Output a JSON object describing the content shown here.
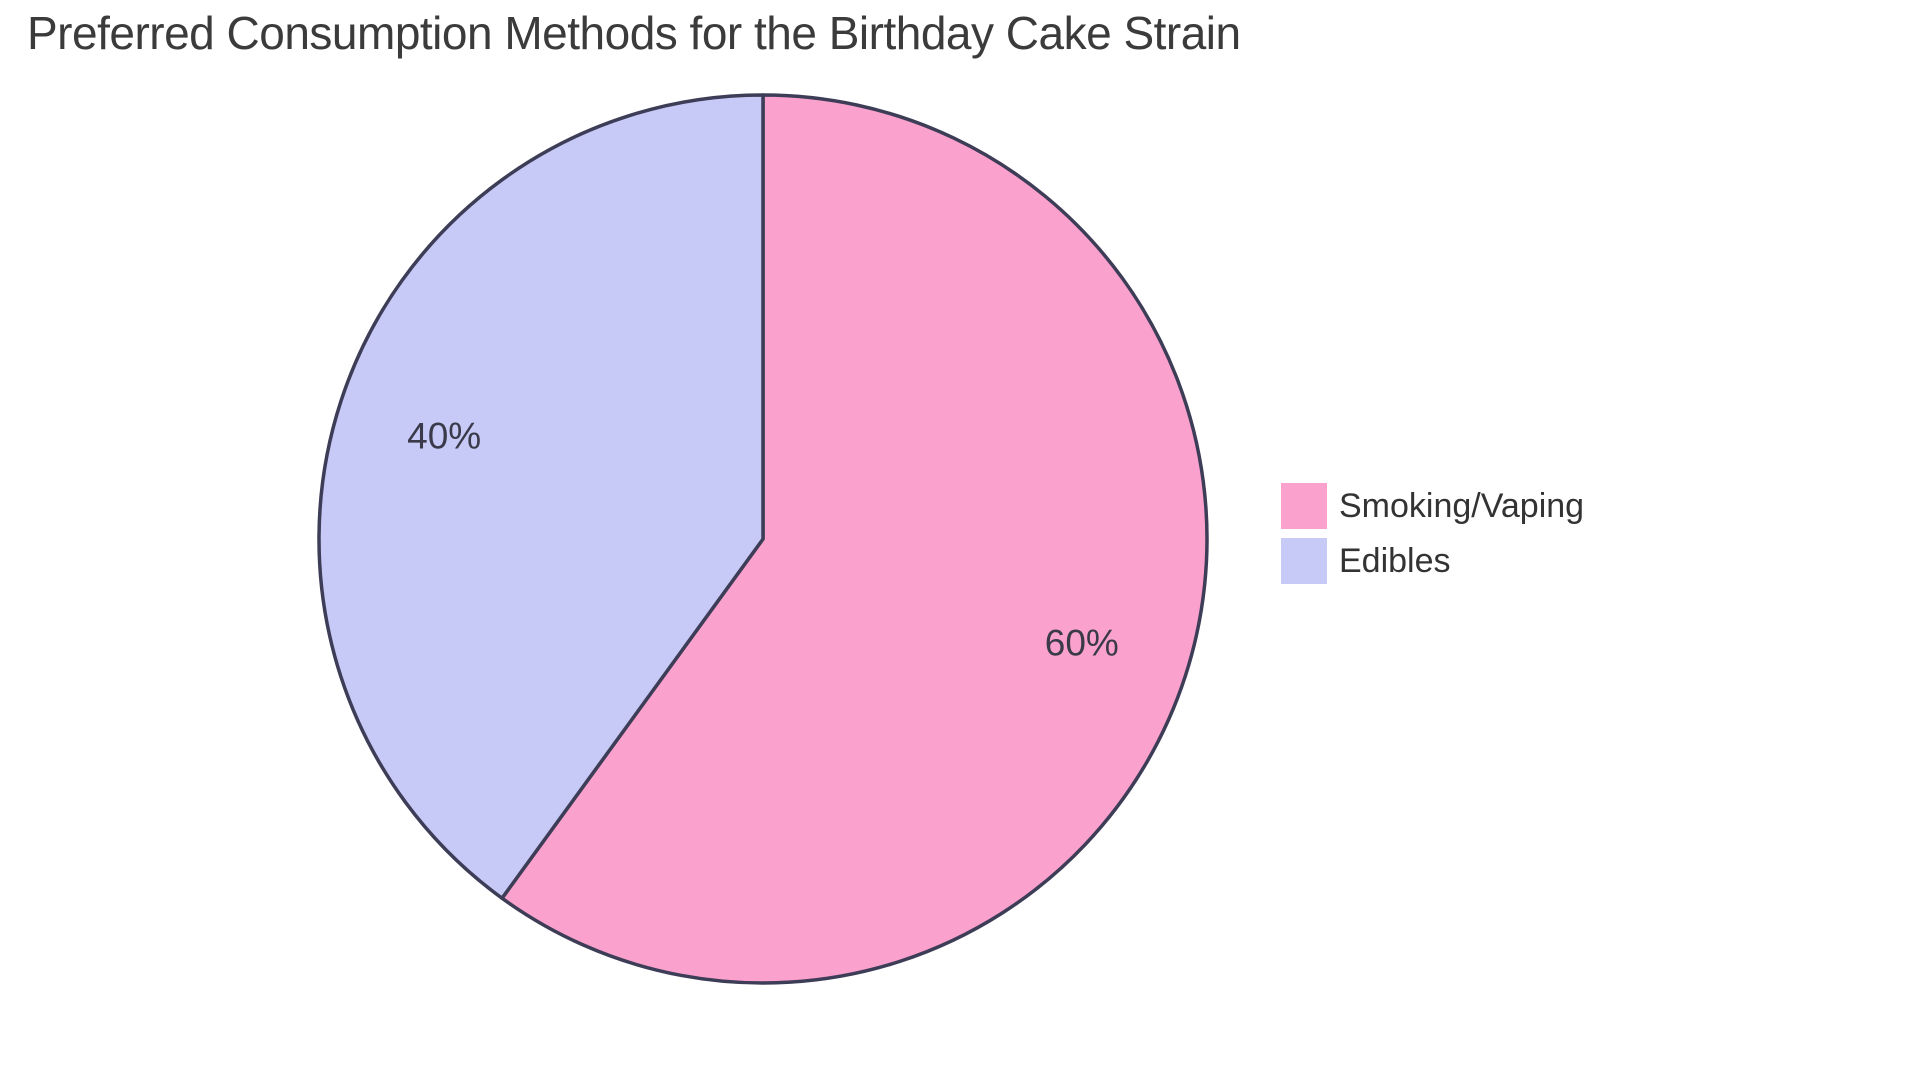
{
  "title": "Preferred Consumption Methods for the Birthday Cake Strain",
  "chart_data": {
    "type": "pie",
    "title": "Preferred Consumption Methods for the Birthday Cake Strain",
    "labels": [
      "Smoking/Vaping",
      "Edibles"
    ],
    "values": [
      60,
      40
    ],
    "value_labels": [
      "60%",
      "40%"
    ],
    "colors": [
      "#FBA1CD",
      "#C7CAF7"
    ],
    "slice_border_color": "#3D3D57",
    "slice_border_width": 3.5,
    "start_angle_deg": 0,
    "direction": "clockwise",
    "label_radius_fraction": 0.755,
    "legend_position": "right"
  },
  "legend": {
    "items": [
      {
        "label": "Smoking/Vaping",
        "color": "#FBA1CD"
      },
      {
        "label": "Edibles",
        "color": "#C7CAF7"
      }
    ]
  }
}
